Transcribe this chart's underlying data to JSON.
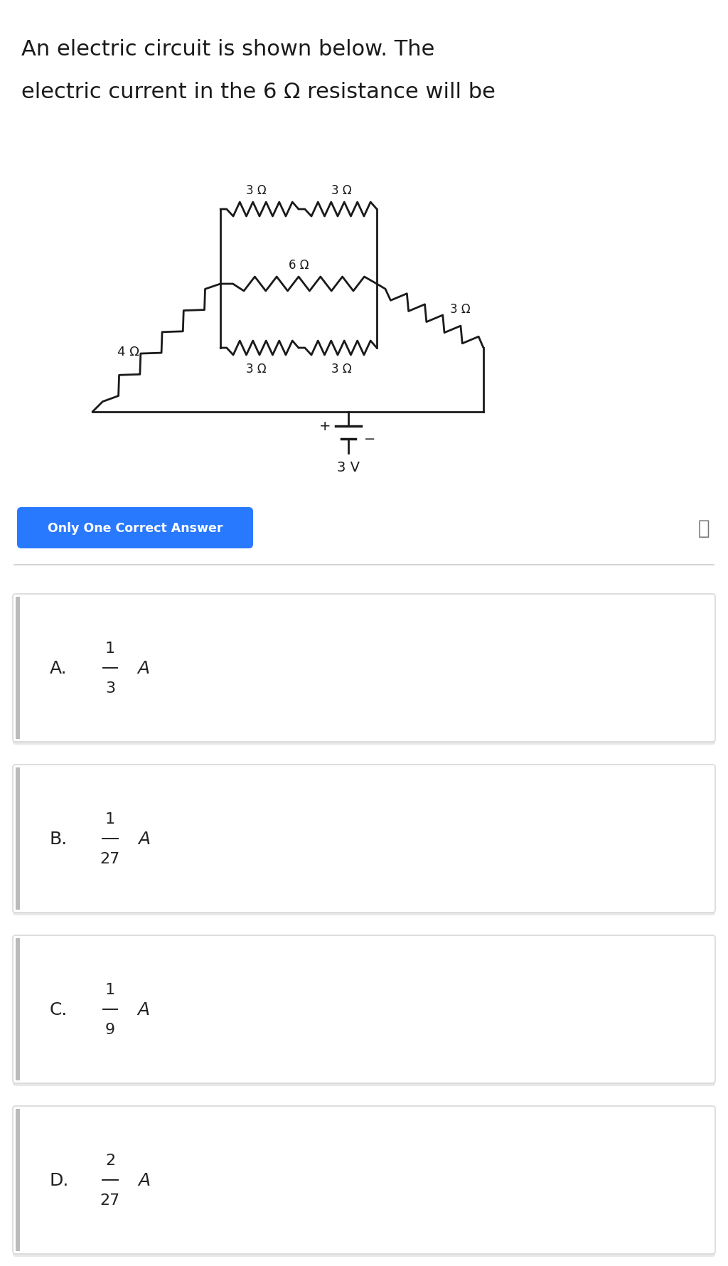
{
  "title_line1": "An electric circuit is shown below. The",
  "title_line2": "electric current in the 6 Ω resistance will be",
  "background_color": "#ffffff",
  "circuit_color": "#1a1a1a",
  "badge_color": "#2979FF",
  "badge_text": "Only One Correct Answer",
  "badge_text_color": "#ffffff",
  "options": [
    {
      "label": "A.",
      "numerator": "1",
      "denominator": "3",
      "unit": "A"
    },
    {
      "label": "B.",
      "numerator": "1",
      "denominator": "27",
      "unit": "A"
    },
    {
      "label": "C.",
      "numerator": "1",
      "denominator": "9",
      "unit": "A"
    },
    {
      "label": "D.",
      "numerator": "2",
      "denominator": "27",
      "unit": "A"
    }
  ],
  "option_bg": "#ffffff",
  "option_border": "#dddddd",
  "info_color": "#555555"
}
